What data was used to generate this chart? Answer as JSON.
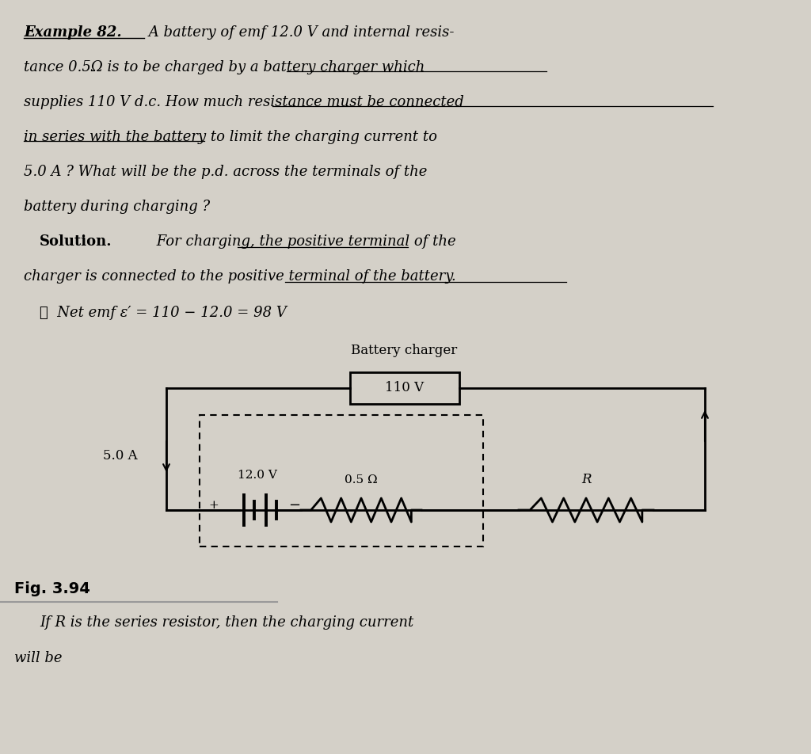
{
  "bg_color": "#d4d0c8",
  "title_text": "Example 82.",
  "body_text_line1": " A battery of emf 12.0 V and internal resis-",
  "body_text_line2": "tance 0.5Ω is to be charged by a battery charger which",
  "body_text_line3": "supplies 110 V d.c. How much resistance must be connected",
  "body_text_line4": "in series with the battery to limit the charging current to",
  "body_text_line5": "5.0 A ? What will be the p.d. across the terminals of the",
  "body_text_line6": "battery during charging ?",
  "solution_bold": "Solution.",
  "solution_rest": " For charging, the positive terminal of the",
  "solution_line2": "charger is connected to the positive terminal of the battery.",
  "net_emf_line": "∴  Net emf ε′ = 110 − 12.0 = 98 V",
  "battery_charger_label": "Battery charger",
  "voltage_label": "110 V",
  "current_label": "5.0 A",
  "battery_voltage": "12.0 V",
  "internal_resistance": "0.5 Ω",
  "series_resistance": "R",
  "fig_label": "Fig. 3.94",
  "footer_line1": "If R is the series resistor, then the charging current",
  "footer_line2": "will be"
}
